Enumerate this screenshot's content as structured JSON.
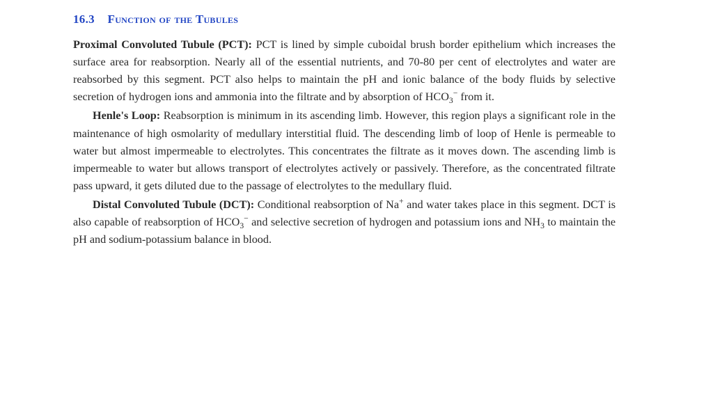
{
  "section": {
    "number": "16.3",
    "title": "Function of the Tubules",
    "heading_color": "#2246c4",
    "heading_fontsize": 17
  },
  "body": {
    "text_color": "#2a2a2a",
    "fontsize": 16.2,
    "line_height": 1.55,
    "font_family": "Georgia, 'Times New Roman', serif"
  },
  "para1": {
    "term": "Proximal Convoluted Tubule (PCT):",
    "text_a": " PCT is lined by simple cuboidal brush border epithelium which increases the surface area for reabsorption. Nearly all of the essential nutrients, and 70-80 per cent of electrolytes and water are reabsorbed by this segment. PCT also helps to maintain the pH and ionic balance of the body fluids by selective secretion of hydrogen ions and ammonia into the filtrate and by absorption of HCO",
    "sub1": "3",
    "sup1": "−",
    "text_b": " from it."
  },
  "para2": {
    "term": "Henle's Loop:",
    "text": " Reabsorption is minimum in its ascending limb. However, this region plays a significant role in the maintenance of high osmolarity of medullary interstitial fluid. The descending limb of loop of Henle is permeable to water but almost impermeable to electrolytes. This concentrates the filtrate as it moves down. The ascending limb is impermeable to water but allows transport of electrolytes actively or passively. Therefore, as the concentrated filtrate pass upward, it gets diluted due to the passage of electrolytes to the medullary fluid."
  },
  "para3": {
    "term": "Distal Convoluted Tubule (DCT):",
    "text_a": " Conditional reabsorption of Na",
    "sup_na": "+",
    "text_b": " and water takes place in this segment. DCT is also capable of reabsorption of HCO",
    "sub_hco": "3",
    "sup_hco": "−",
    "text_c": " and selective secretion of hydrogen and potassium ions and NH",
    "sub_nh": "3",
    "text_d": " to maintain the pH and sodium-potassium balance in blood."
  }
}
